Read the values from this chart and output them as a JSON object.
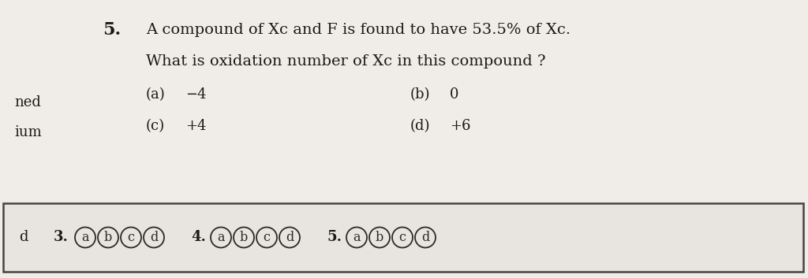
{
  "background_color": "#f0ede8",
  "question_number": "5.",
  "question_line1": "A compound of Xc and F is found to have 53.5% of Xc.",
  "question_line2": "What is oxidation number of Xc in this compound ?",
  "options": [
    {
      "label": "(a)",
      "value": "−4"
    },
    {
      "label": "(b)",
      "value": "0"
    },
    {
      "label": "(c)",
      "value": "+4"
    },
    {
      "label": "(d)",
      "value": "+6"
    }
  ],
  "left_text_line1": "ned",
  "left_text_line2": "ium",
  "footer_left": "d",
  "footer_items": [
    {
      "num": "3.",
      "circles": [
        "a",
        "b",
        "c",
        "d"
      ]
    },
    {
      "num": "4.",
      "circles": [
        "a",
        "b",
        "c",
        "d"
      ]
    },
    {
      "num": "5.",
      "circles": [
        "a",
        "b",
        "c",
        "d"
      ]
    }
  ],
  "text_color": "#1a1a1a",
  "footer_bg": "#e8e5e0",
  "circle_color": "#2a2a2a",
  "font_size_question": 14,
  "font_size_options": 13,
  "font_size_footer": 13,
  "font_size_left": 13,
  "font_size_qnum": 16
}
